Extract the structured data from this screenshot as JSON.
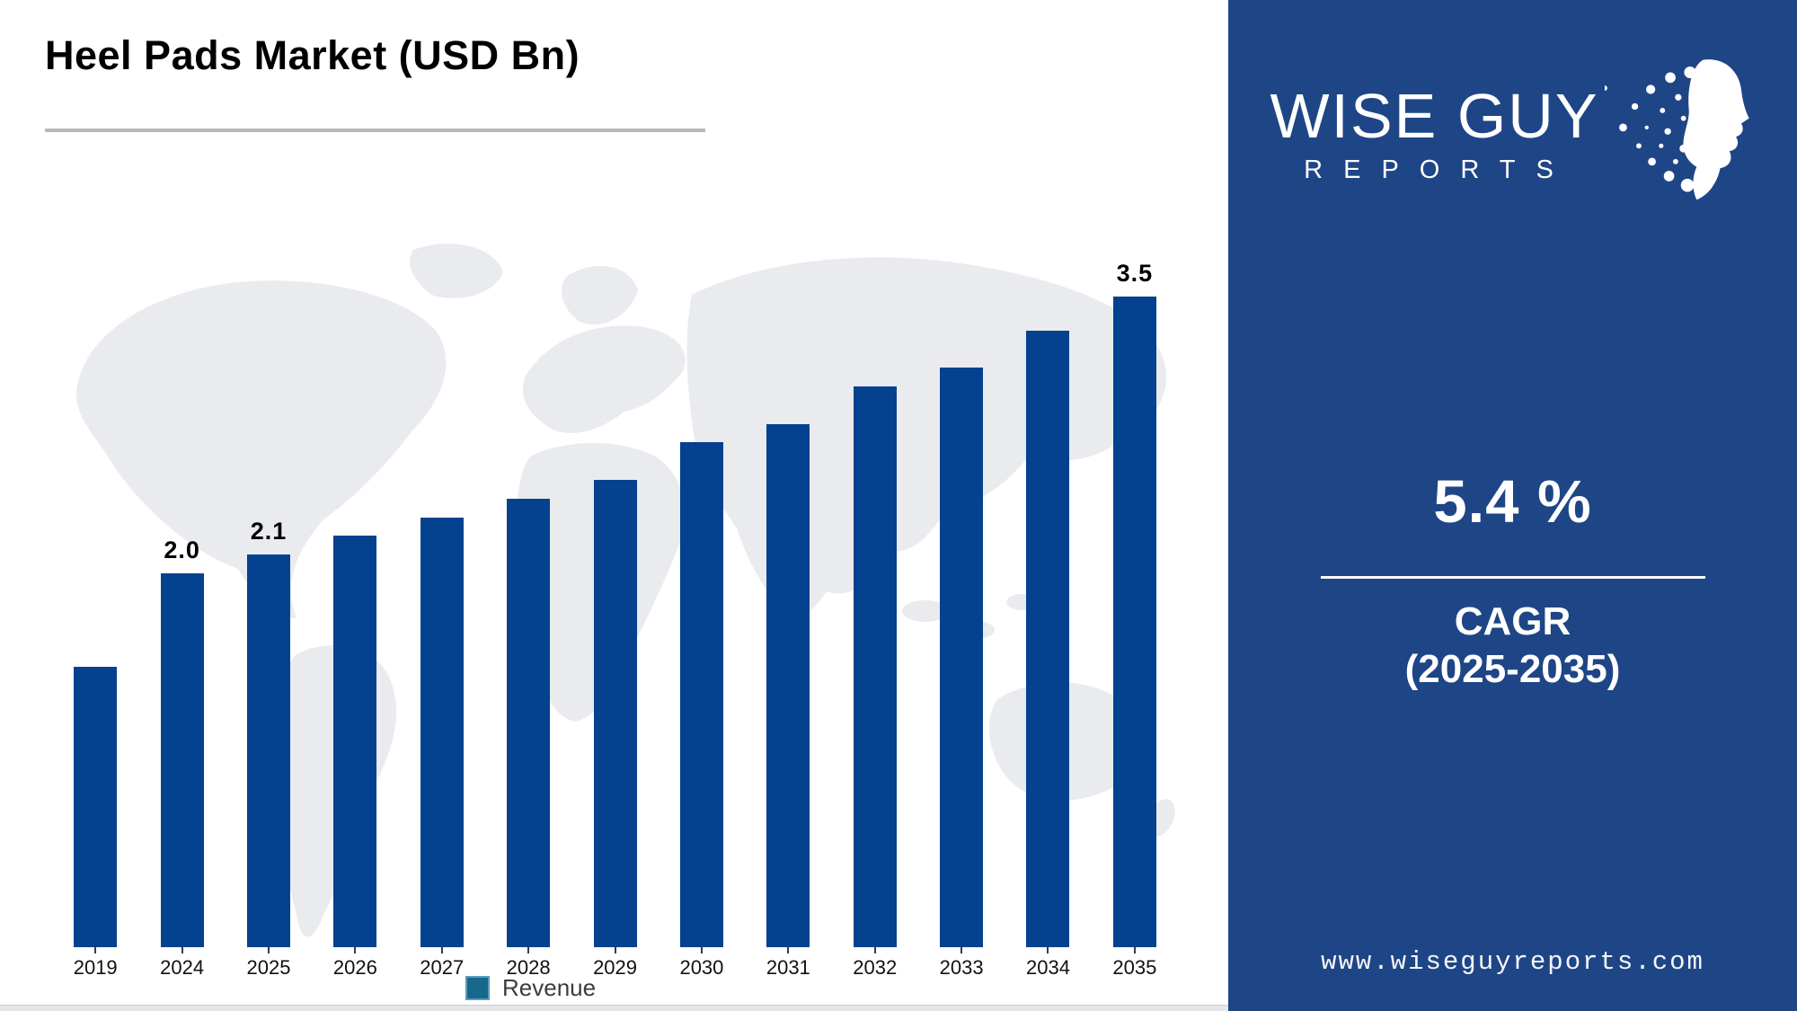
{
  "header": {
    "title": "Heel Pads Market (USD Bn)"
  },
  "chart_data": {
    "type": "bar",
    "title": "Heel Pads Market (USD Bn)",
    "categories": [
      "2019",
      "2024",
      "2025",
      "2026",
      "2027",
      "2028",
      "2029",
      "2030",
      "2031",
      "2032",
      "2033",
      "2034",
      "2035"
    ],
    "values": [
      1.5,
      2.0,
      2.1,
      2.2,
      2.3,
      2.4,
      2.5,
      2.7,
      2.8,
      3.0,
      3.1,
      3.3,
      3.5
    ],
    "point_labels": [
      "",
      "2.0",
      "2.1",
      "",
      "",
      "",
      "",
      "",
      "",
      "",
      "",
      "",
      "3.5"
    ],
    "xlabel": "",
    "ylabel": "",
    "ylim": [
      0,
      3.7
    ],
    "grid": false,
    "legend": [
      "Revenue"
    ],
    "legend_position": "bottom",
    "bar_color": "#04418f"
  },
  "legend": {
    "label": "Revenue",
    "swatch_color": "#17688c"
  },
  "panel": {
    "logo_line1": "WISE GUY",
    "logo_line2": "REPORTS",
    "cagr_value": "5.4 %",
    "cagr_label_line1": "CAGR",
    "cagr_label_line2": "(2025-2035)",
    "website": "www.wiseguyreports.com"
  },
  "colors": {
    "bar": "#04418f",
    "panel_background": "#1e4586",
    "legend_swatch": "#17688c",
    "map": "#e9ebee",
    "title_underline": "#b9b9b9"
  }
}
